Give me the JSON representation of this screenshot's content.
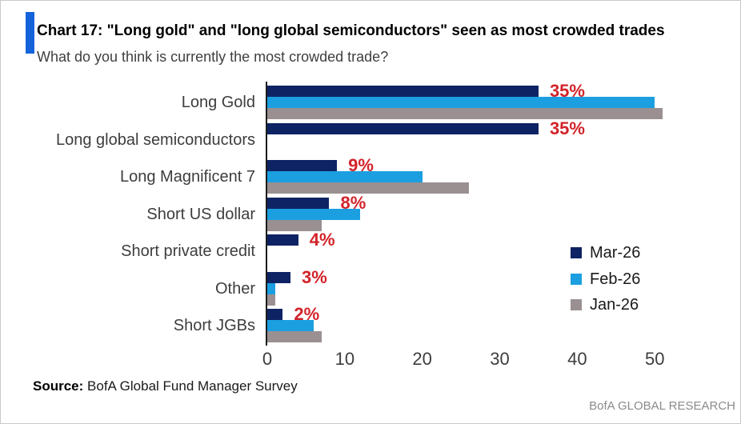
{
  "header": {
    "title": "Chart 17: \"Long gold\" and \"long global semiconductors\" seen as most crowded trades",
    "subtitle": "What do you think is currently the most crowded trade?",
    "accent_color": "#1463DB"
  },
  "chart_data": {
    "type": "bar",
    "orientation": "horizontal",
    "title": "Chart 17: \"Long gold\" and \"long global semiconductors\" seen as most crowded trades",
    "subtitle": "What do you think is currently the most crowded trade?",
    "categories": [
      "Long Gold",
      "Long global semiconductors",
      "Long Magnificent 7",
      "Short US dollar",
      "Short private credit",
      "Other",
      "Short JGBs"
    ],
    "series": [
      {
        "name": "Mar-26",
        "color": "#0E2364",
        "values": [
          35,
          35,
          9,
          8,
          4,
          3,
          2
        ],
        "data_labels": [
          "35%",
          "35%",
          "9%",
          "8%",
          "4%",
          "3%",
          "2%"
        ]
      },
      {
        "name": "Feb-26",
        "color": "#1B9FE0",
        "values": [
          50,
          0,
          20,
          12,
          0,
          1,
          6
        ]
      },
      {
        "name": "Jan-26",
        "color": "#9A9091",
        "values": [
          51,
          0,
          26,
          7,
          0,
          1,
          7
        ]
      }
    ],
    "xticks": [
      0,
      10,
      20,
      30,
      40,
      50
    ],
    "xlim": [
      0,
      57
    ],
    "grid": false,
    "legend_position": "inside-right",
    "data_label_color": "#D2232A",
    "axis_color": "#1a1a1a"
  },
  "footer": {
    "source_label": "Source:",
    "source_text": "BofA Global Fund Manager Survey",
    "brand": "BofA GLOBAL RESEARCH"
  }
}
